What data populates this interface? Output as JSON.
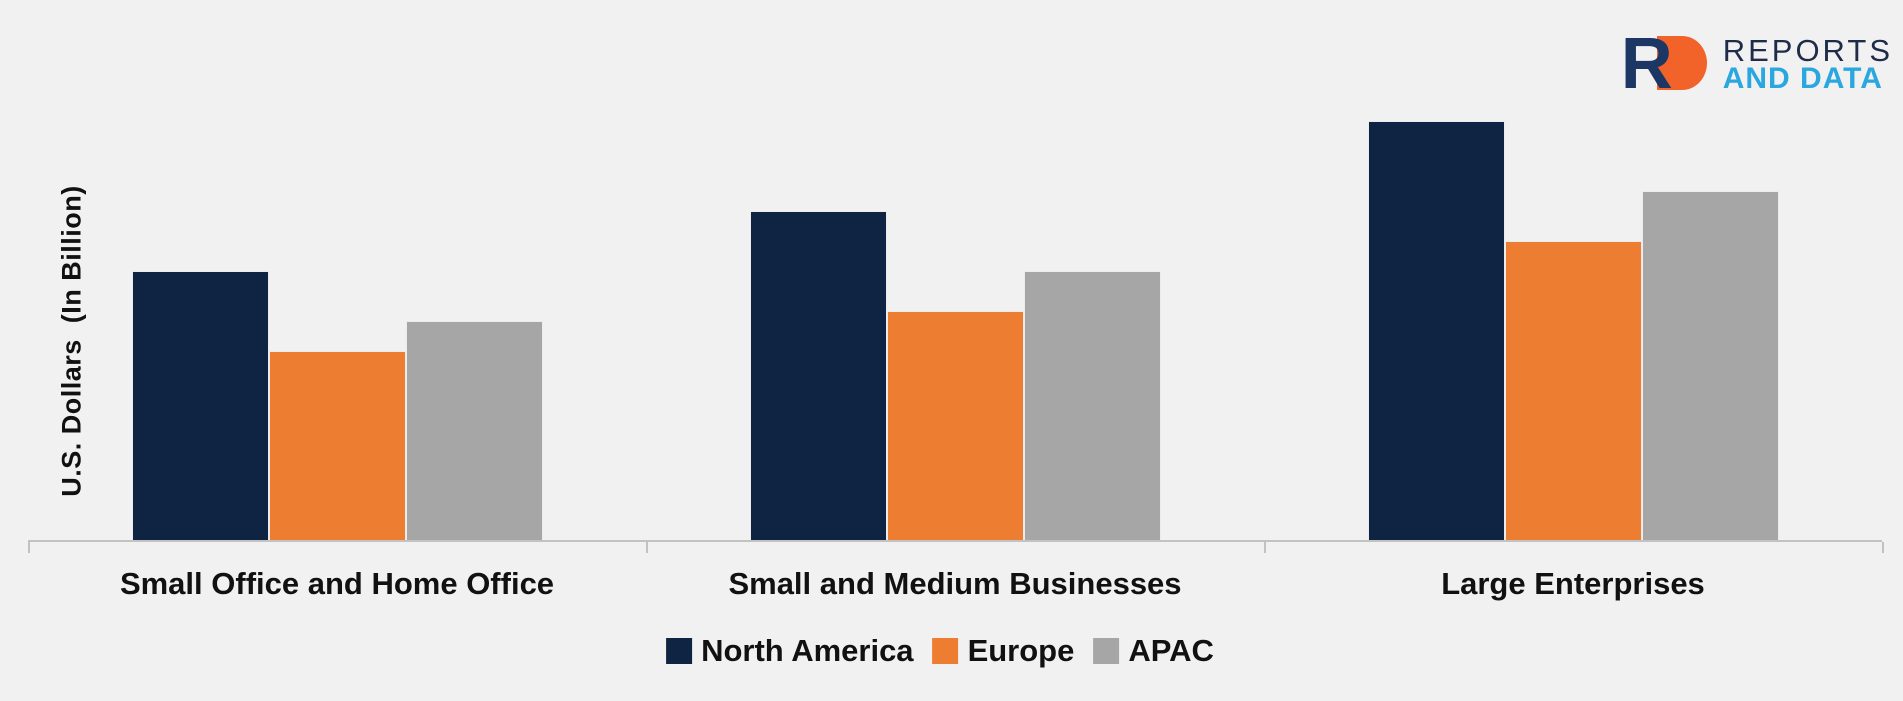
{
  "page": {
    "background_color": "#f1f1f2",
    "text_color": "#111111"
  },
  "logo": {
    "monogram": "RD",
    "monogram_r": "R",
    "line1": "REPORTS",
    "line2": "AND DATA",
    "navy": "#1c3764",
    "orange": "#f2632a",
    "light_blue": "#2ba7e0"
  },
  "chart_data": {
    "type": "bar",
    "title": "",
    "xlabel": "",
    "ylabel": "U.S. Dollars  (In Billion)",
    "categories": [
      "Small Office and Home Office",
      "Small and Medium Businesses",
      "Large Enterprises"
    ],
    "series": [
      {
        "name": "North America",
        "color": "#0e2442",
        "values": [
          2.7,
          3.3,
          4.2
        ]
      },
      {
        "name": "Europe",
        "color": "#ed7d31",
        "values": [
          1.9,
          2.3,
          3.0
        ]
      },
      {
        "name": "APAC",
        "color": "#a6a6a6",
        "values": [
          2.2,
          2.7,
          3.5
        ]
      }
    ],
    "ylim": [
      0,
      5
    ],
    "y_tick_labels_shown": false,
    "grid": false,
    "legend_position": "bottom",
    "axis_color": "#c2c2c2"
  }
}
